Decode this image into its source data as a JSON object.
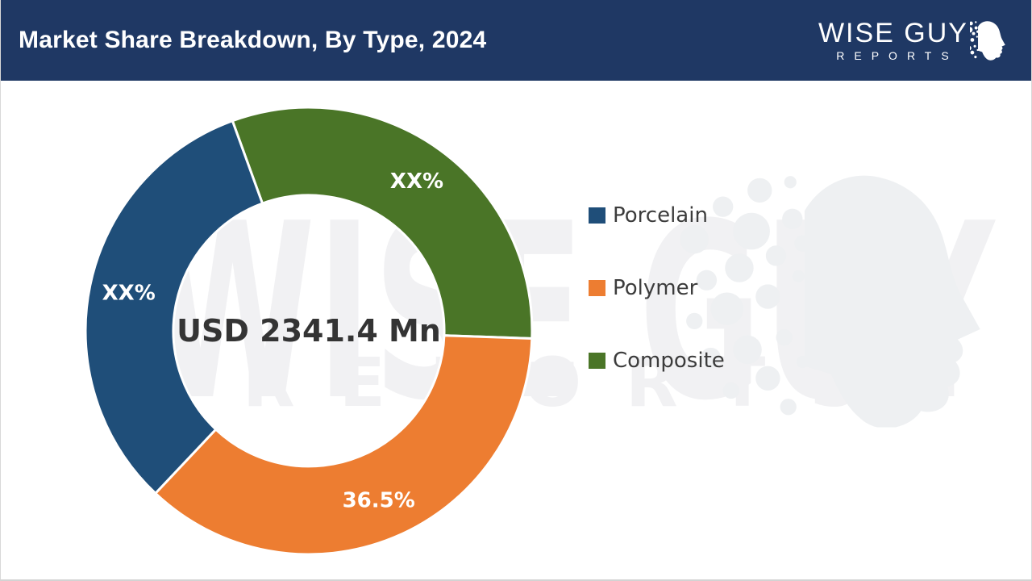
{
  "header": {
    "title": "Market Share Breakdown, By Type, 2024",
    "logo": {
      "line1": "WISE GUY",
      "line2": "REPORTS"
    }
  },
  "watermark": {
    "line1": "WISE GUY",
    "line2": "REPORTS"
  },
  "chart_data": {
    "type": "pie",
    "subtype": "donut",
    "title": "Market Share Breakdown, By Type, 2024",
    "center_label": "USD 2341.4 Mn",
    "start_angle_deg": -20,
    "legend_position": "right",
    "slices": [
      {
        "name": "Composite",
        "label": "XX%",
        "value_pct": 31.1,
        "color": "#4a7527"
      },
      {
        "name": "Polymer",
        "label": "36.5%",
        "value_pct": 36.5,
        "color": "#ed7d31"
      },
      {
        "name": "Porcelain",
        "label": "XX%",
        "value_pct": 32.4,
        "color": "#1f4e79"
      }
    ],
    "legend": [
      {
        "label": "Porcelain",
        "color": "#1f4e79"
      },
      {
        "label": "Polymer",
        "color": "#ed7d31"
      },
      {
        "label": "Composite",
        "color": "#4a7527"
      }
    ]
  },
  "colors": {
    "header_bg": "#1f3864",
    "center_text": "#343434",
    "watermark": "#f1f1f3"
  }
}
